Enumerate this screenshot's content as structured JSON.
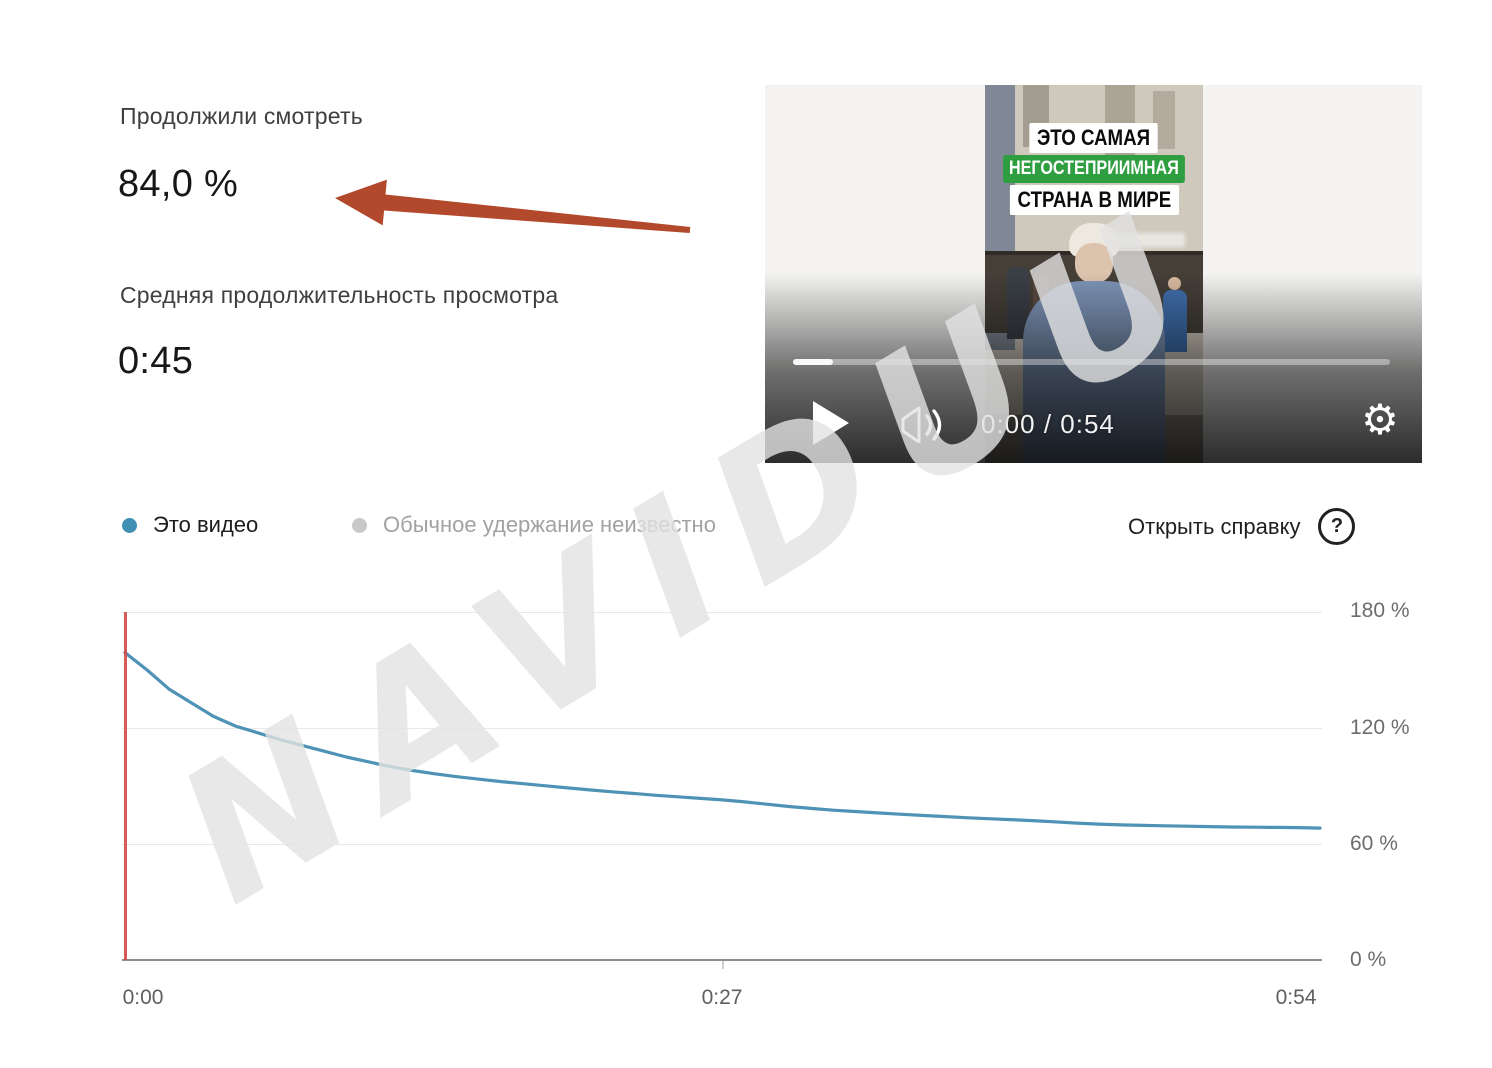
{
  "metrics": {
    "continued_watching": {
      "label": "Продолжили смотреть",
      "value": "84,0 %"
    },
    "average_view_duration": {
      "label": "Средняя продолжительность просмотра",
      "value": "0:45"
    }
  },
  "annotation": {
    "arrow_icon": "left-arrow",
    "arrow_color": "#b2492c"
  },
  "player": {
    "overlay_title_lines": [
      "ЭТО САМАЯ",
      "НЕГОСТЕПРИИМНАЯ",
      "СТРАНА В МИРЕ"
    ],
    "title_highlight_color": "#2f9e41",
    "time_display": "0:00 / 0:54",
    "icons": {
      "play": "play-triangle",
      "volume": "speaker-with-wave",
      "settings": "gear",
      "settings_glyph": "⚙"
    }
  },
  "legend": {
    "items": [
      {
        "label": "Это видео",
        "color": "#4090b5",
        "text_color": "#1c1c1c"
      },
      {
        "label": "Обычное удержание неизвестно",
        "color": "#c9c9c9",
        "text_color": "#a2a2a2"
      }
    ]
  },
  "help": {
    "label": "Открыть справку",
    "icon": "question-mark-circle"
  },
  "watermark": {
    "text": "NAVIDUU"
  },
  "chart_data": {
    "type": "line",
    "title": "",
    "xlabel": "",
    "ylabel": "",
    "x_tick_labels": [
      "0:00",
      "0:27",
      "0:54"
    ],
    "y_tick_labels": [
      "180 %",
      "120 %",
      "60 %",
      "0 %"
    ],
    "ylim": [
      0,
      180
    ],
    "xlim_seconds": [
      0,
      54
    ],
    "grid": "horizontal",
    "playhead": {
      "position_seconds": 0,
      "color": "#cf4a45"
    },
    "series": [
      {
        "name": "Это видео",
        "color": "#4e93b5",
        "x_seconds": [
          0,
          1,
          2,
          3,
          4,
          5,
          6,
          7,
          8,
          9,
          10,
          11,
          12,
          13,
          14,
          15,
          16,
          17,
          18,
          19,
          20,
          21,
          22,
          23,
          24,
          25,
          26,
          27,
          28,
          29,
          30,
          31,
          32,
          33,
          34,
          35,
          36,
          37,
          38,
          39,
          40,
          41,
          42,
          43,
          44,
          45,
          46,
          47,
          48,
          49,
          50,
          51,
          52,
          53,
          54
        ],
        "values": [
          159,
          150,
          140,
          133,
          126,
          121,
          117.5,
          114,
          111,
          108,
          105,
          102.5,
          100,
          98,
          96.3,
          94.8,
          93.5,
          92.3,
          91.2,
          90.1,
          89,
          88,
          87,
          86.1,
          85.2,
          84.4,
          83.6,
          82.8,
          81.8,
          80.6,
          79.4,
          78.4,
          77.5,
          76.8,
          76.1,
          75.4,
          74.8,
          74.2,
          73.6,
          73.1,
          72.6,
          72.1,
          71.5,
          70.8,
          70.3,
          69.9,
          69.6,
          69.4,
          69.2,
          69,
          68.8,
          68.7,
          68.6,
          68.5,
          68.2
        ]
      }
    ]
  }
}
